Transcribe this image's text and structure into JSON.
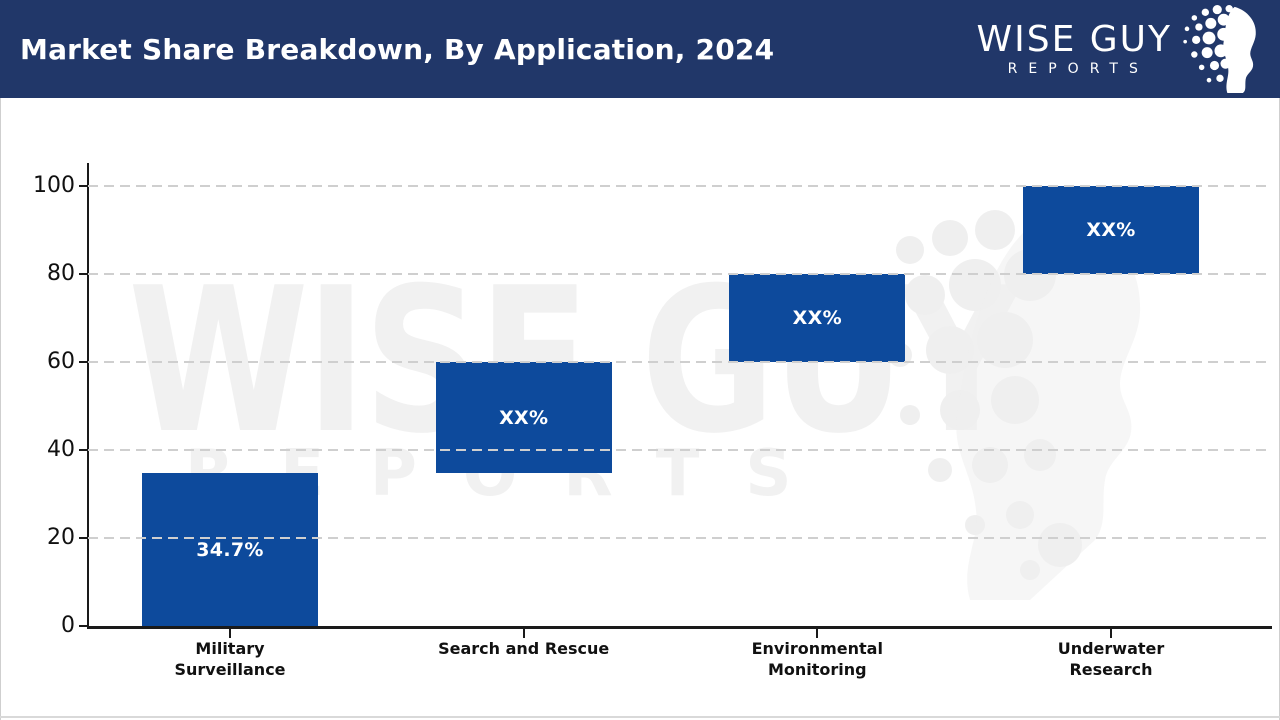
{
  "header": {
    "title": "Market Share Breakdown, By Application, 2024",
    "logo": {
      "brand_top": "WISE GUY",
      "brand_bottom": "REPORTS"
    }
  },
  "watermark": {
    "line1": "WISE GUY",
    "line2": "REPORTS"
  },
  "chart_data": {
    "type": "bar",
    "subtype": "floating-segment-waterfall",
    "title": "Market Share Breakdown, By Application, 2024",
    "categories": [
      "Military Surveillance",
      "Search and Rescue",
      "Environmental Monitoring",
      "Underwater Research"
    ],
    "category_label_lines": [
      [
        "Military",
        "Surveillance"
      ],
      [
        "Search and Rescue"
      ],
      [
        "Environmental",
        "Monitoring"
      ],
      [
        "Underwater",
        "Research"
      ]
    ],
    "segments": [
      {
        "category": "Military Surveillance",
        "start": 0,
        "end": 34.7,
        "value_label": "34.7%"
      },
      {
        "category": "Search and Rescue",
        "start": 34.7,
        "end": 60,
        "value_label": "XX%"
      },
      {
        "category": "Environmental Monitoring",
        "start": 60,
        "end": 80,
        "value_label": "XX%"
      },
      {
        "category": "Underwater Research",
        "start": 80,
        "end": 100,
        "value_label": "XX%"
      }
    ],
    "yticks": [
      0,
      20,
      40,
      60,
      80,
      100
    ],
    "ylim": [
      0,
      105
    ],
    "xlabel": "",
    "ylabel": "",
    "grid": "dashed-horizontal",
    "legend": "none",
    "bar_color": "#0d4a9c",
    "value_label_color": "#ffffff"
  },
  "colors": {
    "header_bg": "#213769",
    "bar_blue": "#0d4a9c",
    "grid_gray": "#cfcfcf",
    "watermark_gray": "#f1f1f1",
    "axis_black": "#1a1a1a"
  }
}
